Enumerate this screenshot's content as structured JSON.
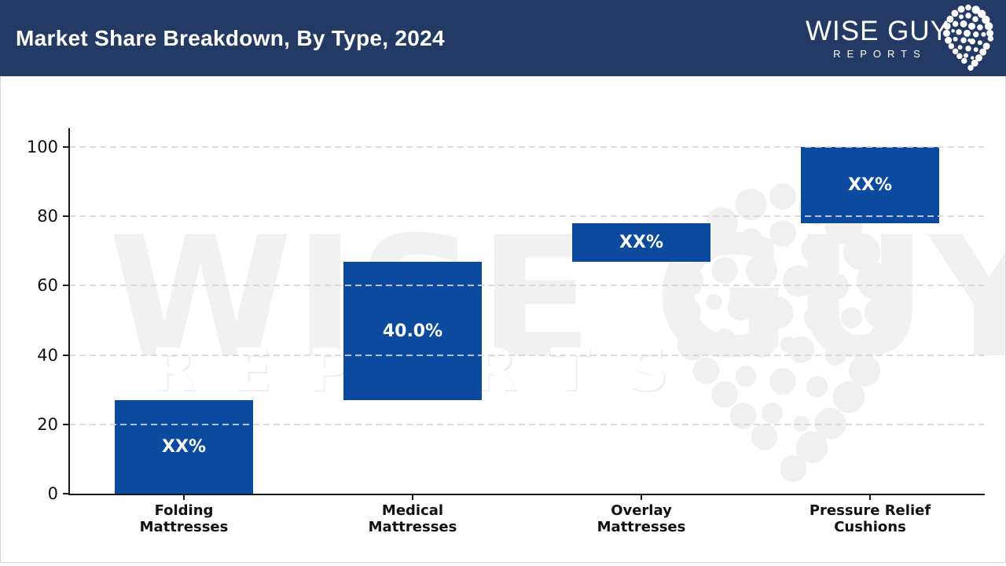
{
  "header": {
    "title": "Market Share Breakdown, By Type, 2024",
    "logo": {
      "line1": "WISE GUY",
      "line2": "REPORTS"
    }
  },
  "watermark": {
    "line1": "WISE GUY",
    "line2": "REPORTS"
  },
  "colors": {
    "header_bg": "#223a64",
    "bar": "#0b4a9e",
    "bar_label": "#ffffff",
    "grid": "#d6d6d6",
    "axis": "#1a1a1a",
    "watermark": "#f1f1f2"
  },
  "chart_data": {
    "type": "bar",
    "variant": "floating-segment (waterfall-style market share breakdown)",
    "title": "Market Share Breakdown, By Type, 2024",
    "categories": [
      "Folding Mattresses",
      "Medical Mattresses",
      "Overlay Mattresses",
      "Pressure Relief Cushions"
    ],
    "segments": [
      {
        "category": "Folding Mattresses",
        "start": 0,
        "end": 27,
        "span": 27,
        "label": "XX%"
      },
      {
        "category": "Medical Mattresses",
        "start": 27,
        "end": 67,
        "span": 40,
        "label": "40.0%"
      },
      {
        "category": "Overlay Mattresses",
        "start": 67,
        "end": 78,
        "span": 11,
        "label": "XX%"
      },
      {
        "category": "Pressure Relief Cushions",
        "start": 78,
        "end": 100,
        "span": 22,
        "label": "XX%"
      }
    ],
    "xlabel": "",
    "ylabel": "",
    "ylim": [
      0,
      100
    ],
    "yticks": [
      0,
      20,
      40,
      60,
      80,
      100
    ],
    "grid": "horizontal-dashed-over-bars",
    "legend": "none",
    "bar_color": "#0b4a9e",
    "bar_label_color": "#ffffff"
  }
}
